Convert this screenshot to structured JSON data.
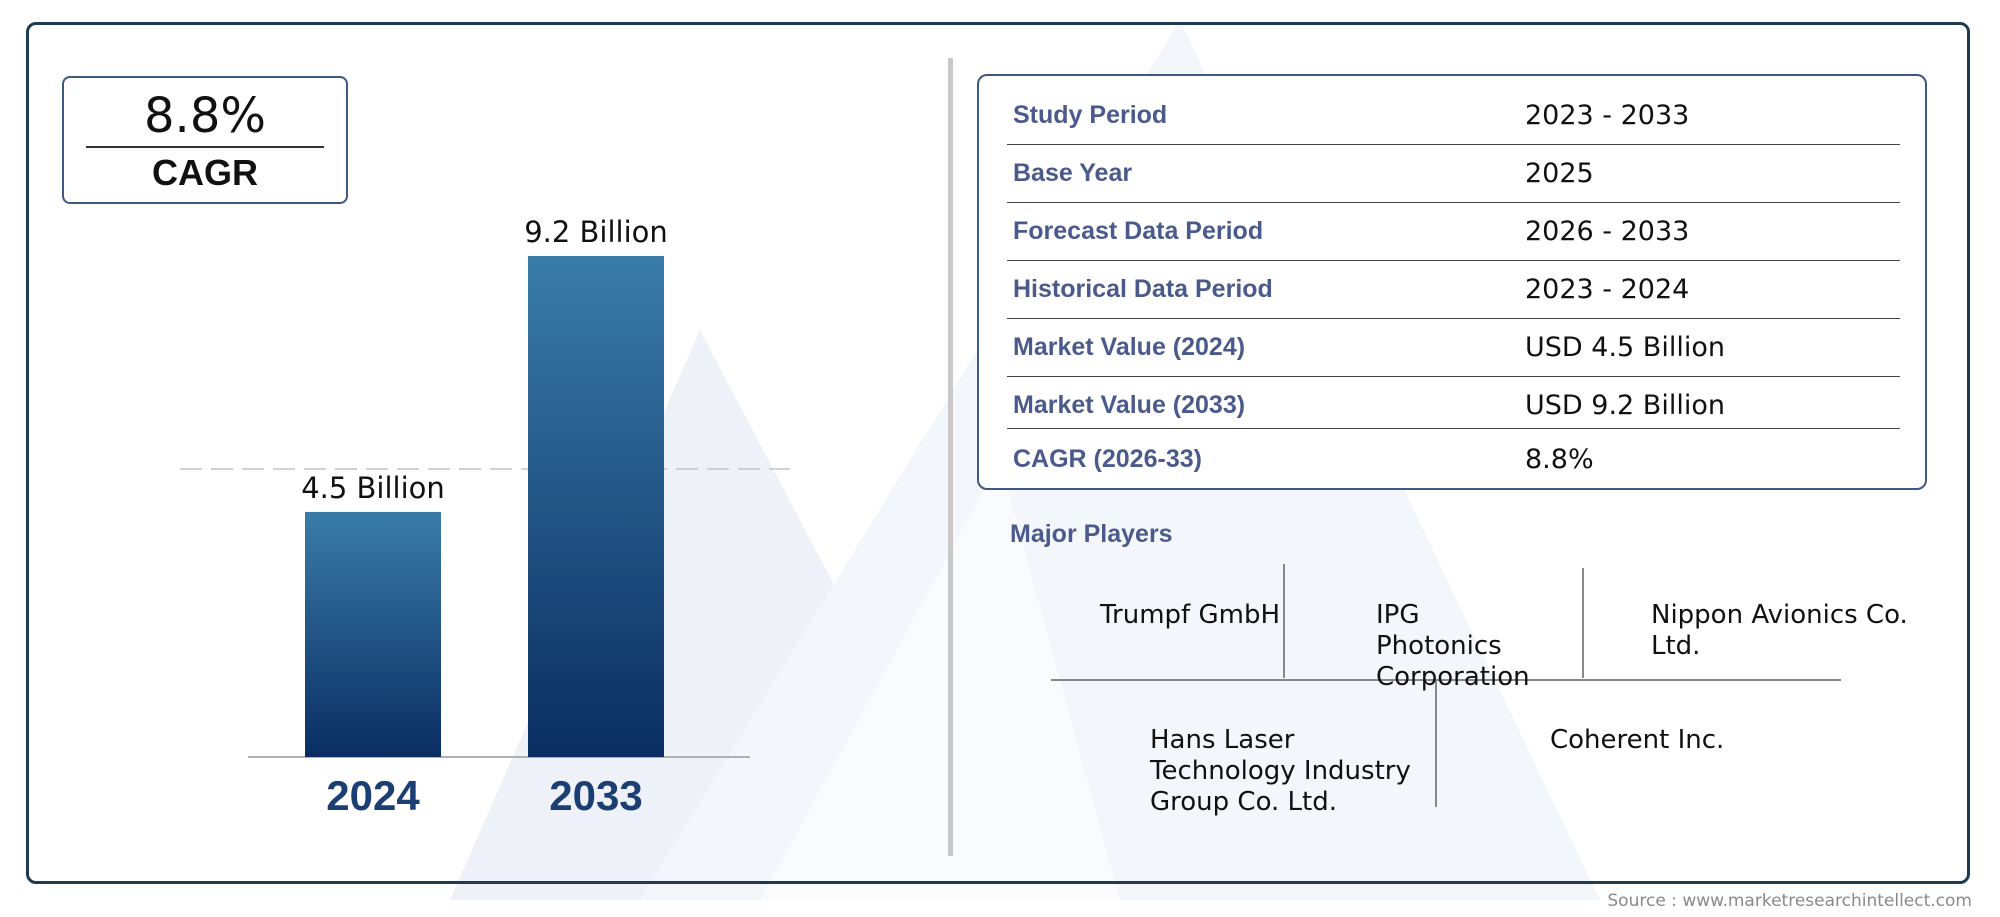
{
  "cagr_box": {
    "value": "8.8%",
    "label": "CAGR"
  },
  "chart_data": {
    "type": "bar",
    "categories": [
      "2024",
      "2033"
    ],
    "values": [
      4.5,
      9.2
    ],
    "data_labels": [
      "4.5 Billion",
      "9.2 Billion"
    ],
    "unit": "Billion",
    "ylim": [
      0,
      9.2
    ],
    "grid": false,
    "reference_line_at": 4.5,
    "colors": {
      "bar_top": "#3a7ca8",
      "bar_bottom": "#0a2d62",
      "category_label": "#1c3f73"
    }
  },
  "info_table": [
    {
      "label": "Study Period",
      "value": "2023 - 2033"
    },
    {
      "label": "Base Year",
      "value": "2025"
    },
    {
      "label": "Forecast Data Period",
      "value": "2026 - 2033"
    },
    {
      "label": "Historical Data Period",
      "value": "2023 - 2024"
    },
    {
      "label": "Market Value (2024)",
      "value": "USD 4.5 Billion"
    },
    {
      "label": "Market Value (2033)",
      "value": "USD 9.2 Billion"
    },
    {
      "label": "CAGR (2026-33)",
      "value": "8.8%"
    }
  ],
  "players": {
    "title": "Major Players",
    "names": [
      "Trumpf GmbH",
      "IPG Photonics Corporation",
      "Nippon Avionics Co. Ltd.",
      "Hans Laser Technology Industry Group Co. Ltd.",
      "Coherent Inc."
    ]
  },
  "source": "Source : www.marketresearchintellect.com",
  "colors": {
    "frame": "#1f3b52",
    "label_text": "#4a5a8c",
    "box_border": "#3f5a80"
  }
}
